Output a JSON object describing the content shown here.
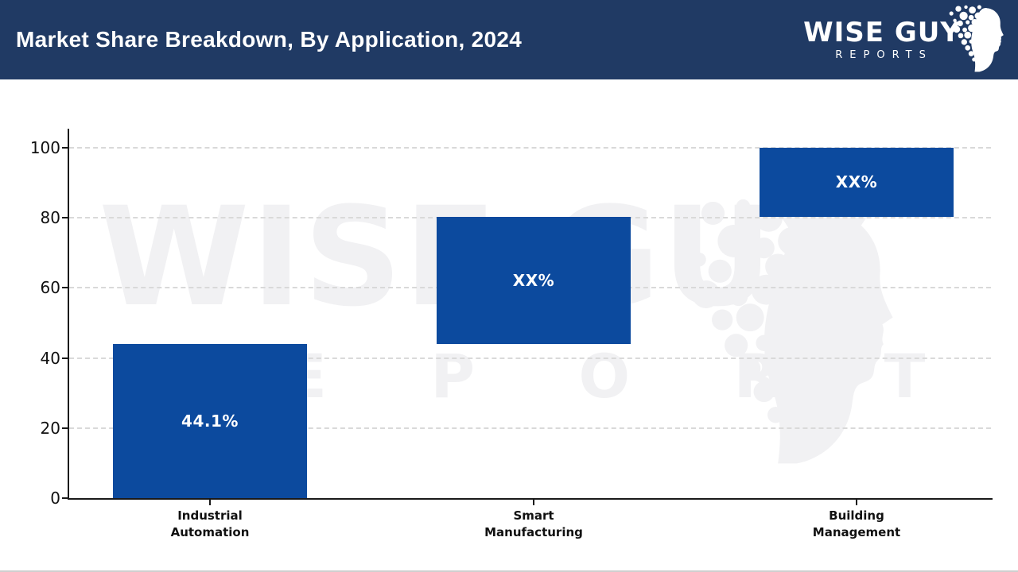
{
  "header": {
    "title": "Market Share Breakdown, By Application, 2024",
    "logo": {
      "line1": "WISE GUY",
      "line2": "REPORTS"
    }
  },
  "watermark": {
    "line1": "WISE GUY",
    "line2": "R E P O R T S"
  },
  "colors": {
    "header_bg": "#203a64",
    "bar": "#0c4a9e",
    "bar_label": "#ffffff",
    "watermark": "#f1f1f3",
    "gridline": "#d9d9d9",
    "axis": "#1a1a1a"
  },
  "chart_data": {
    "type": "bar",
    "subtype": "waterfall",
    "title": "Market Share Breakdown, By Application, 2024",
    "categories": [
      [
        "Industrial",
        "Automation"
      ],
      [
        "Smart",
        "Manufacturing"
      ],
      [
        "Building",
        "Management"
      ]
    ],
    "segments": [
      {
        "category": "Industrial Automation",
        "start": 0,
        "end": 44.1,
        "label": "44.1%"
      },
      {
        "category": "Smart Manufacturing",
        "start": 44.1,
        "end": 80.3,
        "label": "XX%"
      },
      {
        "category": "Building Management",
        "start": 80.3,
        "end": 100,
        "label": "XX%"
      }
    ],
    "xlabel": "",
    "ylabel": "",
    "ylim": [
      0,
      100
    ],
    "yticks": [
      0,
      20,
      40,
      60,
      80,
      100
    ],
    "grid": "dashed-horizontal",
    "legend": "none"
  }
}
